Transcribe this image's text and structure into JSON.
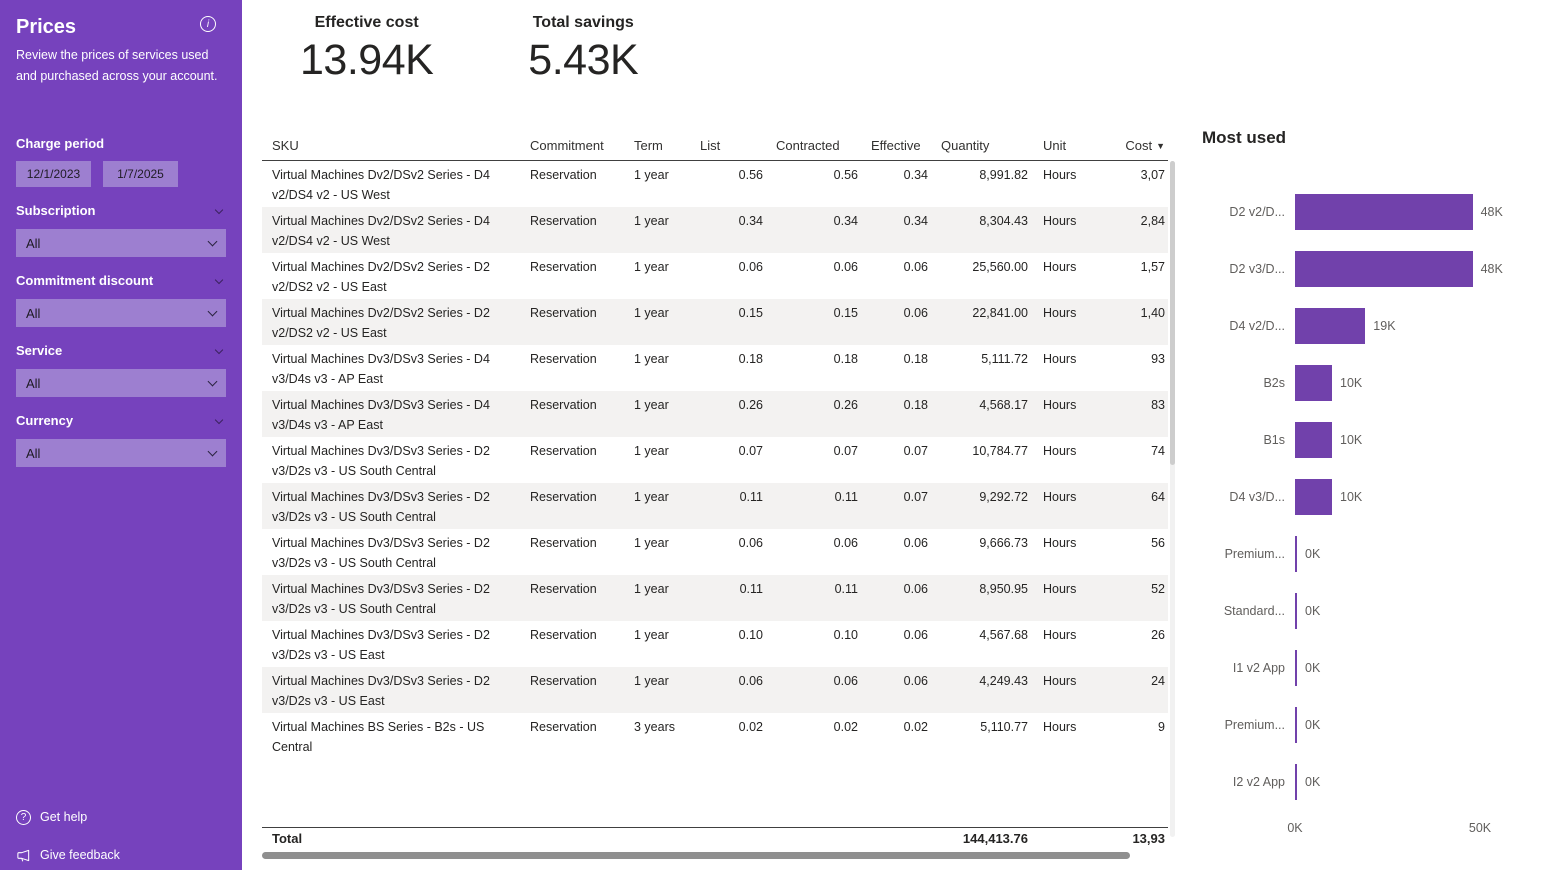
{
  "icons": {
    "info_glyph": "i",
    "help_glyph": "?",
    "sort_desc_glyph": "▼"
  },
  "colors": {
    "sidebar_bg": "#7642bd",
    "control_bg": "#9d7fd0",
    "bar_fill": "#7141ab",
    "alt_row_bg": "#f3f2f1",
    "text": "#252423"
  },
  "sidebar": {
    "title": "Prices",
    "subtitle": "Review the prices of services used and purchased across your account.",
    "charge_period": {
      "label": "Charge period",
      "start_date": "12/1/2023",
      "end_date": "1/7/2025"
    },
    "filters": [
      {
        "label": "Subscription",
        "value": "All"
      },
      {
        "label": "Commitment discount",
        "value": "All"
      },
      {
        "label": "Service",
        "value": "All"
      },
      {
        "label": "Currency",
        "value": "All"
      }
    ],
    "footer": {
      "get_help": "Get help",
      "give_feedback": "Give feedback"
    }
  },
  "kpis": [
    {
      "label": "Effective cost",
      "value": "13.94K"
    },
    {
      "label": "Total savings",
      "value": "5.43K"
    }
  ],
  "table": {
    "columns": [
      "SKU",
      "Commitment",
      "Term",
      "List",
      "Contracted",
      "Effective",
      "Quantity",
      "Unit",
      "Cost"
    ],
    "sorted_column": "Cost",
    "rows": [
      [
        "Virtual Machines Dv2/DSv2 Series - D4 v2/DS4 v2 - US West",
        "Reservation",
        "1 year",
        "0.56",
        "0.56",
        "0.34",
        "8,991.82",
        "Hours",
        "3,07"
      ],
      [
        "Virtual Machines Dv2/DSv2 Series - D4 v2/DS4 v2 - US West",
        "Reservation",
        "1 year",
        "0.34",
        "0.34",
        "0.34",
        "8,304.43",
        "Hours",
        "2,84"
      ],
      [
        "Virtual Machines Dv2/DSv2 Series - D2 v2/DS2 v2 - US East",
        "Reservation",
        "1 year",
        "0.06",
        "0.06",
        "0.06",
        "25,560.00",
        "Hours",
        "1,57"
      ],
      [
        "Virtual Machines Dv2/DSv2 Series - D2 v2/DS2 v2 - US East",
        "Reservation",
        "1 year",
        "0.15",
        "0.15",
        "0.06",
        "22,841.00",
        "Hours",
        "1,40"
      ],
      [
        "Virtual Machines Dv3/DSv3 Series - D4 v3/D4s v3 - AP East",
        "Reservation",
        "1 year",
        "0.18",
        "0.18",
        "0.18",
        "5,111.72",
        "Hours",
        "93"
      ],
      [
        "Virtual Machines Dv3/DSv3 Series - D4 v3/D4s v3 - AP East",
        "Reservation",
        "1 year",
        "0.26",
        "0.26",
        "0.18",
        "4,568.17",
        "Hours",
        "83"
      ],
      [
        "Virtual Machines Dv3/DSv3 Series - D2 v3/D2s v3 - US South Central",
        "Reservation",
        "1 year",
        "0.07",
        "0.07",
        "0.07",
        "10,784.77",
        "Hours",
        "74"
      ],
      [
        "Virtual Machines Dv3/DSv3 Series - D2 v3/D2s v3 - US South Central",
        "Reservation",
        "1 year",
        "0.11",
        "0.11",
        "0.07",
        "9,292.72",
        "Hours",
        "64"
      ],
      [
        "Virtual Machines Dv3/DSv3 Series - D2 v3/D2s v3 - US South Central",
        "Reservation",
        "1 year",
        "0.06",
        "0.06",
        "0.06",
        "9,666.73",
        "Hours",
        "56"
      ],
      [
        "Virtual Machines Dv3/DSv3 Series - D2 v3/D2s v3 - US South Central",
        "Reservation",
        "1 year",
        "0.11",
        "0.11",
        "0.06",
        "8,950.95",
        "Hours",
        "52"
      ],
      [
        "Virtual Machines Dv3/DSv3 Series - D2 v3/D2s v3 - US East",
        "Reservation",
        "1 year",
        "0.10",
        "0.10",
        "0.06",
        "4,567.68",
        "Hours",
        "26"
      ],
      [
        "Virtual Machines Dv3/DSv3 Series - D2 v3/D2s v3 - US East",
        "Reservation",
        "1 year",
        "0.06",
        "0.06",
        "0.06",
        "4,249.43",
        "Hours",
        "24"
      ],
      [
        "Virtual Machines BS Series - B2s - US Central",
        "Reservation",
        "3 years",
        "0.02",
        "0.02",
        "0.02",
        "5,110.77",
        "Hours",
        "9"
      ]
    ],
    "total": {
      "label": "Total",
      "quantity": "144,413.76",
      "cost": "13,93"
    }
  },
  "chart_data": {
    "type": "bar",
    "orientation": "horizontal",
    "title": "Most used",
    "categories": [
      "D2 v2/D...",
      "D2 v3/D...",
      "D4 v2/D...",
      "B2s",
      "B1s",
      "D4 v3/D...",
      "Premium...",
      "Standard...",
      "I1 v2 App",
      "Premium...",
      "I2 v2 App"
    ],
    "values": [
      48,
      48,
      19,
      10,
      10,
      10,
      0,
      0,
      0,
      0,
      0
    ],
    "value_labels": [
      "48K",
      "48K",
      "19K",
      "10K",
      "10K",
      "10K",
      "0K",
      "0K",
      "0K",
      "0K",
      "0K"
    ],
    "xlabel": "",
    "ylabel": "",
    "xlim": [
      0,
      50
    ],
    "x_ticks": [
      "0K",
      "50K"
    ],
    "grid": false,
    "legend": false,
    "bar_color": "#7141ab"
  }
}
